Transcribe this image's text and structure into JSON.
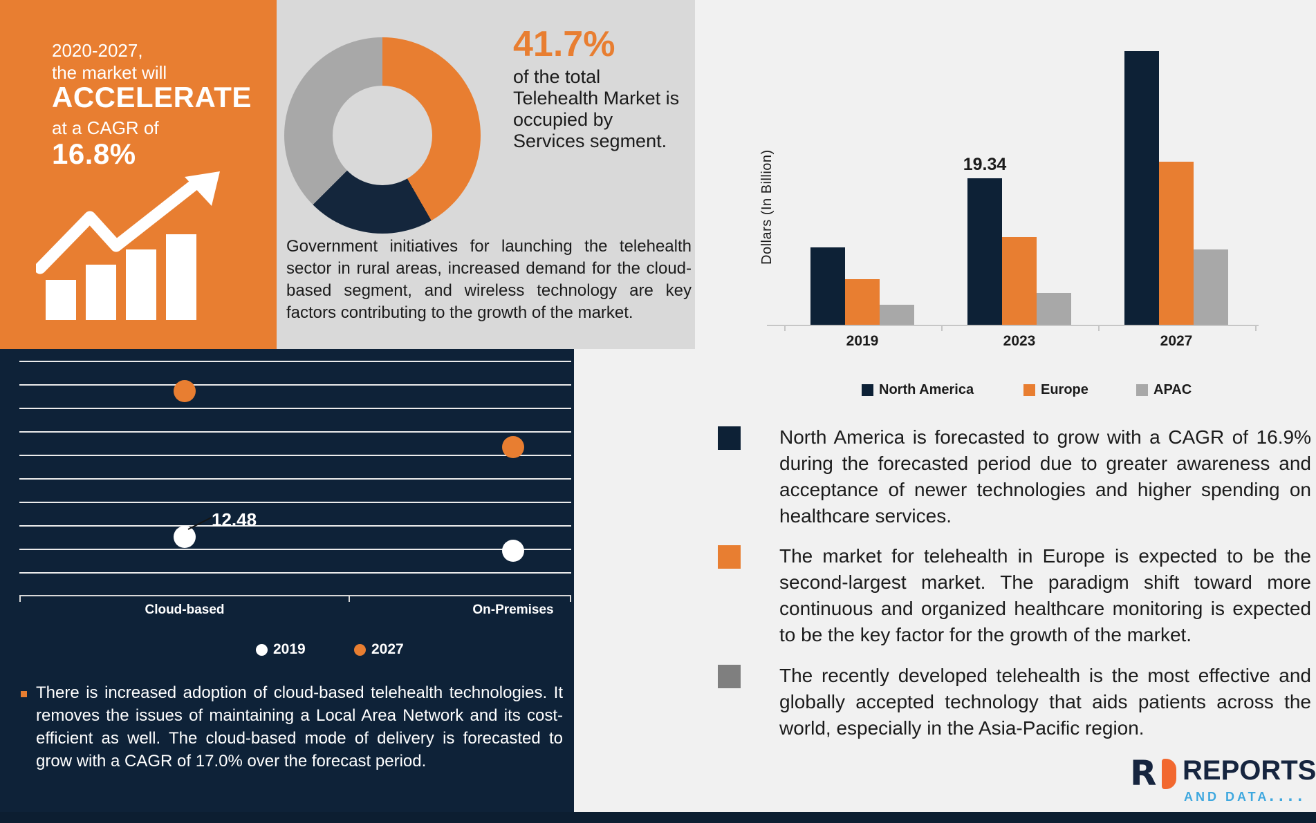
{
  "colors": {
    "orange": "#E87E31",
    "navy": "#0D2136",
    "panel_navy": "#0E2238",
    "gray": "#A8A8A8",
    "gray_block": "#D9D9D9",
    "right_bg": "#F1F1F1",
    "bullet_gray": "#7F7F7F",
    "logo_blue": "#3FA8DF",
    "logo_navy": "#16253F",
    "logo_orange": "#F2682F",
    "bottom_strip": "#0C1E31"
  },
  "promo": {
    "lines": [
      "2020-2027,",
      "the market will",
      "ACCELERATE",
      "at a CAGR of",
      "16.8%"
    ]
  },
  "stat": {
    "value": "41.7%",
    "caption": "of the total Telehealth Market is occupied by Services segment."
  },
  "gray_paragraph": "Government initiatives for launching the telehealth sector in rural areas, increased demand for the cloud-based segment, and wireless technology are key factors contributing to the growth of the market.",
  "chart_data": [
    {
      "type": "pie",
      "variant": "donut",
      "segments": [
        {
          "label": "Services",
          "value": 41.7,
          "color": "#E87E31"
        },
        {
          "label": "",
          "value": 20.8,
          "color": "#14263C"
        },
        {
          "label": "",
          "value": 37.5,
          "color": "#A8A8A8"
        }
      ]
    },
    {
      "type": "bar",
      "ylabel": "Dollars (In Billion)",
      "categories": [
        "2019",
        "2023",
        "2027"
      ],
      "series": [
        {
          "name": "North America",
          "color": "#0D2136",
          "values": [
            10.2,
            19.34,
            36.1
          ]
        },
        {
          "name": "Europe",
          "color": "#E87E31",
          "values": [
            6.0,
            11.6,
            21.5
          ]
        },
        {
          "name": "APAC",
          "color": "#A8A8A8",
          "values": [
            2.6,
            4.2,
            9.9
          ]
        }
      ],
      "data_labels": [
        {
          "series": 0,
          "category_index": 1,
          "text": "19.34"
        }
      ],
      "ylim": [
        0,
        40
      ],
      "grid": false,
      "legend_position": "bottom"
    },
    {
      "type": "scatter",
      "variant": "dot-plot",
      "categories": [
        "Cloud-based",
        "On-Premises"
      ],
      "series": [
        {
          "name": "2019",
          "color": "#FFFFFF",
          "values": [
            12.48,
            9.5
          ]
        },
        {
          "name": "2027",
          "color": "#E87E31",
          "values": [
            43.5,
            31.5
          ]
        }
      ],
      "data_labels": [
        {
          "series": 0,
          "category_index": 0,
          "text": "12.48"
        }
      ],
      "ylim": [
        0,
        52
      ],
      "gridline_step": 5,
      "legend_position": "bottom"
    }
  ],
  "right_bullets": [
    {
      "color": "#0D2136",
      "text": "North America is forecasted to grow with a CAGR of 16.9% during the forecasted period due to greater awareness and acceptance of newer technologies and higher spending on healthcare services."
    },
    {
      "color": "#E87E31",
      "text": "The market for telehealth in Europe is expected to be the second-largest market. The paradigm shift toward more continuous and organized healthcare monitoring is expected to be the key factor for the growth of the market."
    },
    {
      "color": "#7F7F7F",
      "text": "The recently developed telehealth is the most effective and globally accepted technology that aids patients across the world, especially in the Asia-Pacific region."
    }
  ],
  "cloud_paragraph": "There is increased adoption of cloud-based telehealth technologies. It removes the issues of maintaining a Local Area Network and its cost-efficient as well. The cloud-based mode of delivery is forecasted to grow with a CAGR of 17.0% over the forecast period.",
  "logo": {
    "mark": "R",
    "word": "REPORTS",
    "sub": "AND DATA",
    "dots": "...."
  }
}
